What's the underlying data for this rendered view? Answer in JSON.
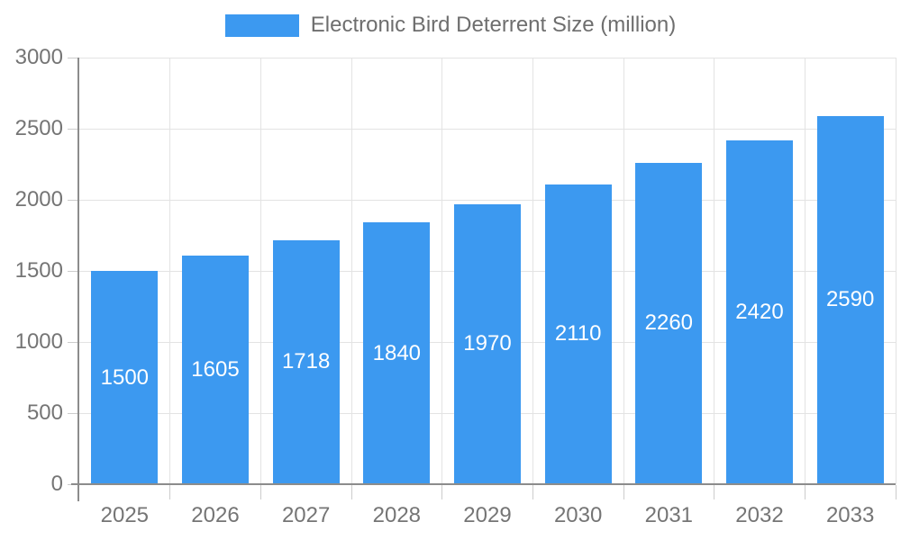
{
  "legend": {
    "label": "Electronic Bird Deterrent Size (million)"
  },
  "chart_data": {
    "type": "bar",
    "title": "Electronic Bird Deterrent Size (million)",
    "categories": [
      "2025",
      "2026",
      "2027",
      "2028",
      "2029",
      "2030",
      "2031",
      "2032",
      "2033"
    ],
    "values": [
      1500,
      1605,
      1718,
      1840,
      1970,
      2110,
      2260,
      2420,
      2590
    ],
    "xlabel": "",
    "ylabel": "",
    "ylim": [
      0,
      3000
    ],
    "yticks": [
      0,
      500,
      1000,
      1500,
      2000,
      2500,
      3000
    ],
    "grid": true,
    "legend_position": "top",
    "bar_color": "#3C99F0",
    "bar_label_color": "#FFFFFF",
    "axis_text_color": "#757575",
    "gridline_color": "#E3E3E3",
    "tick_color": "#CCCCCC",
    "axis_line_color": "#8C8C8C"
  }
}
